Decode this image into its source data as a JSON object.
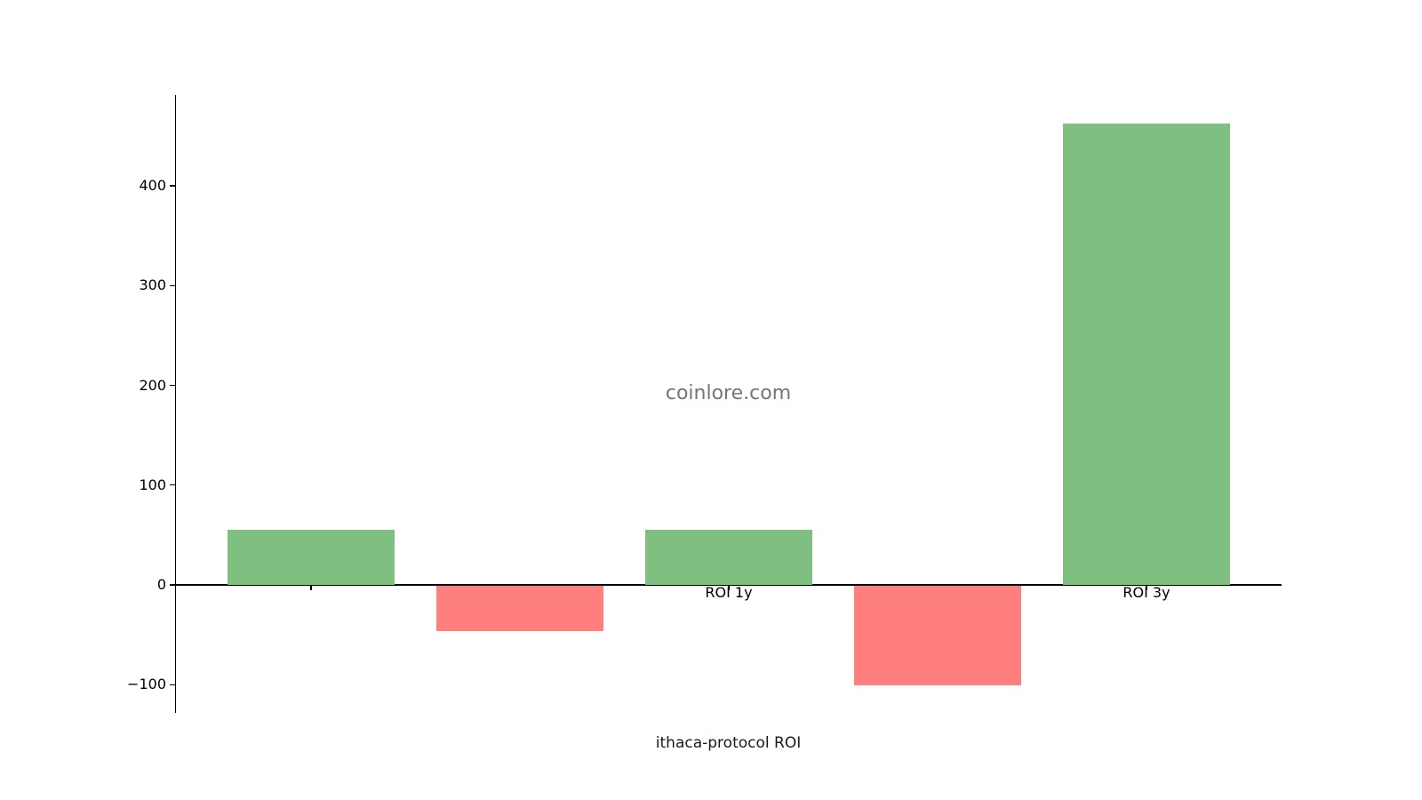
{
  "chart_data": {
    "type": "bar",
    "title": "",
    "xlabel": "ithaca-protocol ROI",
    "ylabel": "",
    "watermark": "coinlore.com",
    "categories": [
      "",
      "",
      "ROI 1y",
      "",
      "ROI 3y"
    ],
    "values": [
      55,
      -45,
      55,
      -100,
      462
    ],
    "bar_colors": [
      "#7fbf7f",
      "#ff7f7f",
      "#7fbf7f",
      "#ff7f7f",
      "#7fbf7f"
    ],
    "positive_color": "#7fbf7f",
    "negative_color": "#ff7f7f",
    "y_ticks": [
      -100,
      0,
      100,
      200,
      300,
      400
    ],
    "ylim": [
      -128,
      490
    ],
    "x_tick_bar_indices": [
      0,
      2,
      4
    ],
    "x_tick_labels": [
      "",
      "ROI 1y",
      "ROI 3y"
    ],
    "grid": false,
    "legend_position": "none",
    "axis_color": "#000000",
    "watermark_color": "#757575"
  }
}
